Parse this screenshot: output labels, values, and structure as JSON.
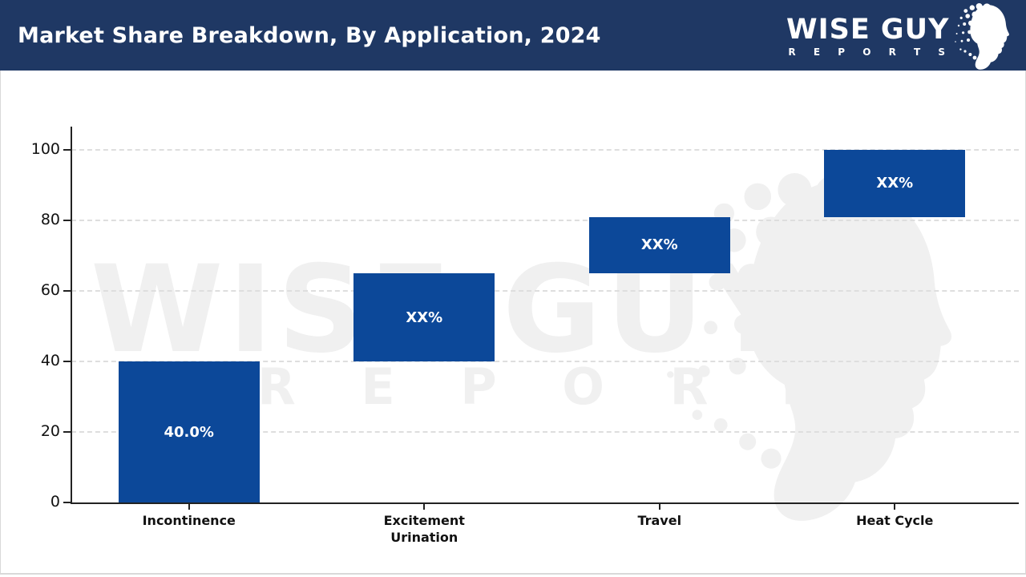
{
  "header": {
    "title": "Market Share Breakdown, By Application, 2024",
    "logo": {
      "line1": "WISE GUY",
      "line2": "R E P O R T S"
    }
  },
  "watermark": {
    "line1": "WISE GUY",
    "line2": "R E P O R T S"
  },
  "colors": {
    "header_bg": "#1f3864",
    "bar_fill": "#0c4899",
    "bar_label": "#ffffff",
    "gridline": "#dedede",
    "axis": "#222222",
    "tick_label": "#111111",
    "watermark": "#f0f0f0"
  },
  "chart_data": {
    "type": "bar",
    "subtype": "waterfall",
    "title": "Market Share Breakdown, By Application, 2024",
    "categories": [
      "Incontinence",
      "Excitement Urination",
      "Travel",
      "Heat Cycle"
    ],
    "segments": [
      {
        "category": "Incontinence",
        "start": 0,
        "end": 40,
        "label": "40.0%"
      },
      {
        "category": "Excitement Urination",
        "start": 40,
        "end": 65,
        "label": "XX%"
      },
      {
        "category": "Travel",
        "start": 65,
        "end": 81,
        "label": "XX%"
      },
      {
        "category": "Heat Cycle",
        "start": 81,
        "end": 100,
        "label": "XX%"
      }
    ],
    "y_ticks": [
      0,
      20,
      40,
      60,
      80,
      100
    ],
    "ylim": [
      0,
      105
    ],
    "xlabel": "",
    "ylabel": "",
    "grid": "horizontal-dashed",
    "legend": "none"
  }
}
